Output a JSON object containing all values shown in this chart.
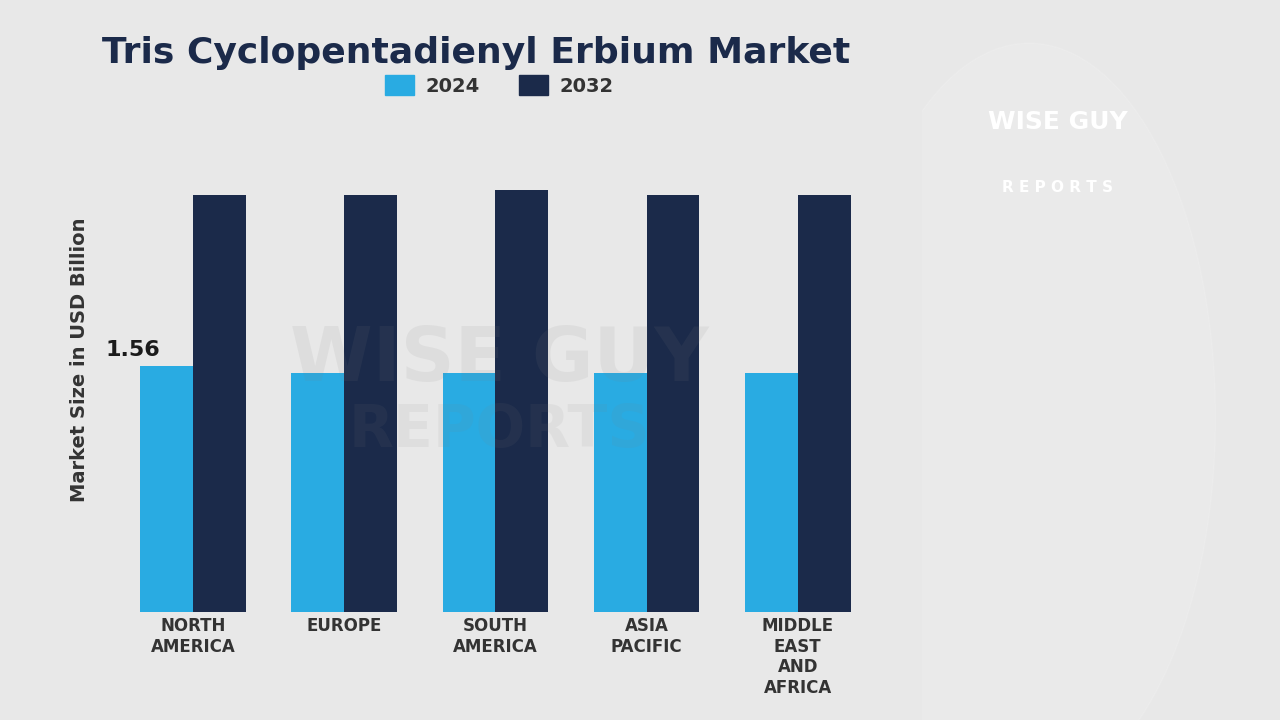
{
  "title": "Tris Cyclopentadienyl Erbium Market",
  "ylabel": "Market Size in USD Billion",
  "categories": [
    "NORTH\nAMERICA",
    "EUROPE",
    "SOUTH\nAMERICA",
    "ASIA\nPACIFIC",
    "MIDDLE\nEAST\nAND\nAFRICA"
  ],
  "values_2024": [
    1.56,
    1.52,
    1.52,
    1.52,
    1.52
  ],
  "values_2032": [
    2.65,
    2.65,
    2.68,
    2.65,
    2.65
  ],
  "annotation_value": "1.56",
  "annotation_region_idx": 0,
  "color_2024": "#29ABE2",
  "color_2032": "#1B2A4A",
  "bg_color": "#E8E8E8",
  "right_panel_color": "#1B2A4A",
  "title_color": "#1B2A4A",
  "bar_width": 0.35,
  "ylim": [
    0,
    3.2
  ],
  "legend_labels": [
    "2024",
    "2032"
  ],
  "title_fontsize": 26,
  "ylabel_fontsize": 14,
  "tick_fontsize": 12,
  "annotation_fontsize": 16
}
